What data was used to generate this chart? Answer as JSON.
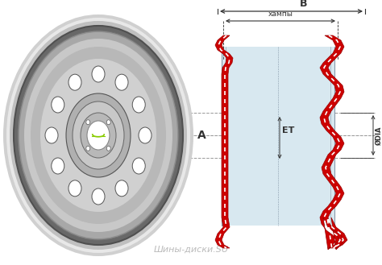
{
  "background_color": "#ffffff",
  "watermark": "Шины-диски.SU",
  "label_B": "B",
  "label_hampy": "хампы",
  "label_ET": "ET",
  "label_A": "A",
  "label_DIA": "ØDIA",
  "rim_red": "#cc0000",
  "rim_inner_fill": "#d8e8f0",
  "rim_body_line": "#8899aa",
  "wheel_outer": "#c0c0c0",
  "wheel_mid": "#a0a0a0",
  "wheel_dark": "#707070",
  "wheel_light": "#e0e0e0",
  "wheel_hub": "#b0b0b0",
  "dashed_color": "#999999",
  "dim_color": "#333333",
  "white": "#ffffff"
}
